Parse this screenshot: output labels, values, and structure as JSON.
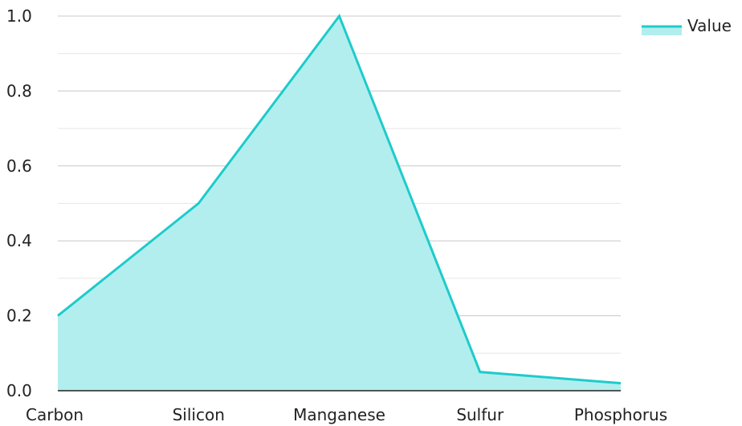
{
  "chart_data": {
    "type": "area",
    "title": "",
    "xlabel": "",
    "ylabel": "",
    "categories": [
      "Carbon",
      "Silicon",
      "Manganese",
      "Sulfur",
      "Phosphorus"
    ],
    "series": [
      {
        "name": "Value",
        "values": [
          0.2,
          0.5,
          1.0,
          0.05,
          0.02
        ]
      }
    ],
    "ylim": [
      0,
      1.0
    ],
    "y_ticks": [
      "0.0",
      "0.2",
      "0.4",
      "0.6",
      "0.8",
      "1.0"
    ],
    "grid": true,
    "legend": {
      "position": "top-right",
      "label": "Value"
    },
    "colors": {
      "line": "#1ecbcb",
      "fill": "#b2eeee",
      "grid": "#c8c8c8",
      "axis": "#222222"
    }
  }
}
